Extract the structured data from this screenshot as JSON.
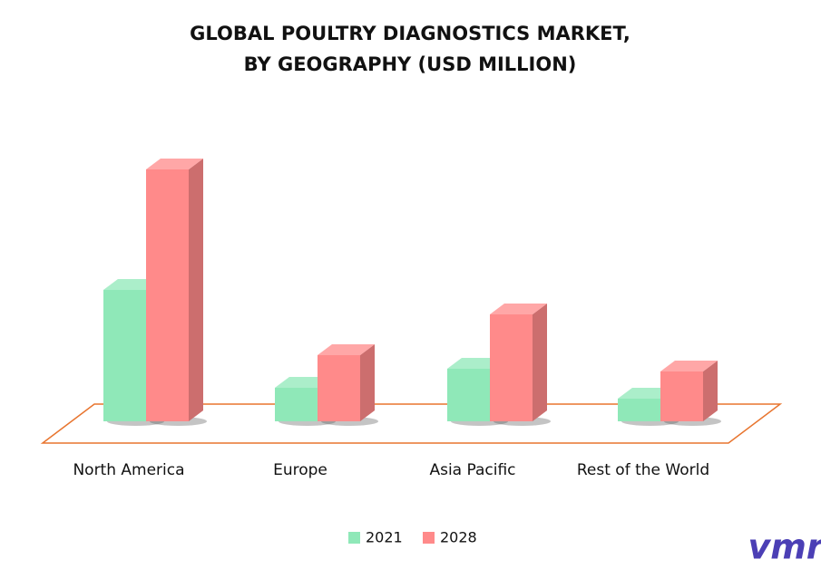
{
  "chart_data": {
    "type": "bar3d",
    "title": [
      "GLOBAL POULTRY DIAGNOSTICS MARKET,",
      "BY GEOGRAPHY (USD MILLION)"
    ],
    "categories": [
      "North America",
      "Europe",
      "Asia Pacific",
      "Rest of the World"
    ],
    "series": [
      {
        "name": "2021",
        "color": "#8fe8b8",
        "values": [
          145,
          37,
          58,
          25
        ]
      },
      {
        "name": "2028",
        "color": "#ff8a8a",
        "values": [
          278,
          73,
          118,
          55
        ]
      }
    ],
    "logo": "vmr"
  }
}
